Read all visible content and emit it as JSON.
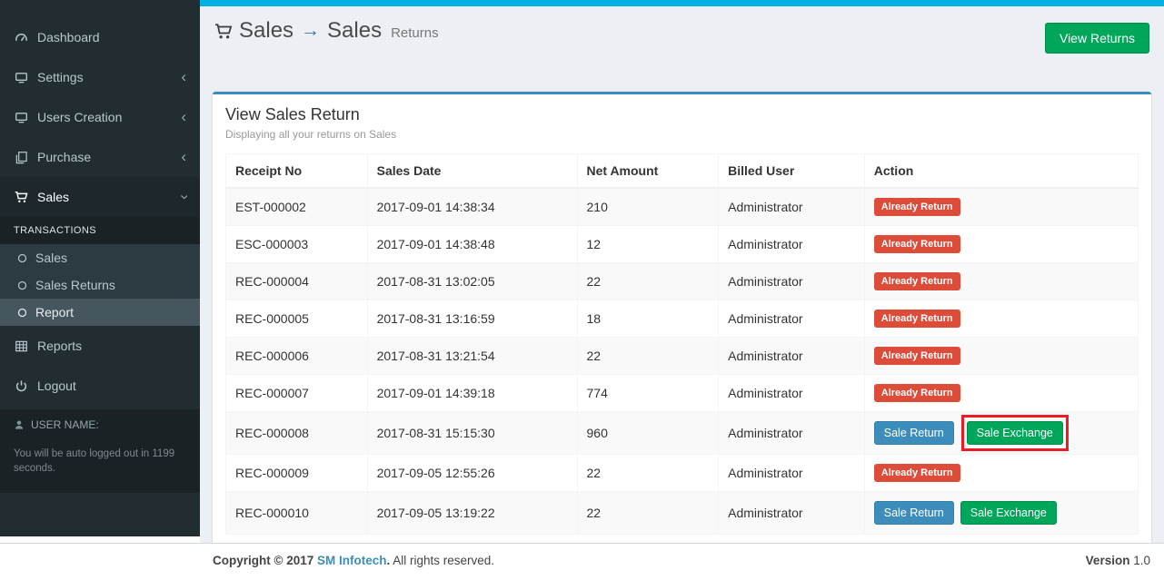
{
  "colors": {
    "top_strip": "#00b1e1",
    "sidebar_bg": "#222d32",
    "sidebar_active_bg": "#1e282c",
    "submenu_bg": "#2c3b41",
    "content_bg": "#ecf0f5",
    "box_top_border": "#3c8dbc",
    "success_green": "#00a65a",
    "danger_red": "#dd4b39",
    "primary_blue": "#3c8dbc",
    "annotation_red": "#ed1c24"
  },
  "sidebar": {
    "items": [
      {
        "label": "Dashboard",
        "icon": "dashboard-icon",
        "chevron": null,
        "active": false
      },
      {
        "label": "Settings",
        "icon": "monitor-icon",
        "chevron": "left",
        "active": false
      },
      {
        "label": "Users Creation",
        "icon": "monitor-icon",
        "chevron": "left",
        "active": false
      },
      {
        "label": "Purchase",
        "icon": "copy-icon",
        "chevron": "left",
        "active": false
      },
      {
        "label": "Sales",
        "icon": "cart-icon",
        "chevron": "down",
        "active": true
      }
    ],
    "section_header": "TRANSACTIONS",
    "submenu": [
      {
        "label": "Sales",
        "icon": "circle-icon",
        "highlighted": false
      },
      {
        "label": "Sales Returns",
        "icon": "circle-icon",
        "highlighted": false
      },
      {
        "label": "Report",
        "icon": "circle-icon",
        "highlighted": true
      }
    ],
    "lower_items": [
      {
        "label": "Reports",
        "icon": "table-icon"
      },
      {
        "label": "Logout",
        "icon": "power-icon"
      }
    ],
    "user_panel": {
      "label": "USER NAME:",
      "logout_note": "You will be auto logged out in 1199 seconds."
    }
  },
  "header": {
    "icon": "cart-icon",
    "title": "Sales",
    "arrow": "→",
    "title2": "Sales",
    "subtitle": "Returns",
    "action_button": "View Returns"
  },
  "panel": {
    "title": "View Sales Return",
    "subtitle": "Displaying all your returns on Sales"
  },
  "table": {
    "columns": [
      "Receipt No",
      "Sales Date",
      "Net Amount",
      "Billed User",
      "Action"
    ],
    "rows": [
      {
        "receipt": "EST-000002",
        "date": "2017-09-01 14:38:34",
        "amount": "210",
        "user": "Administrator",
        "actions": [
          {
            "label": "Already Return",
            "kind": "badge-danger",
            "name": "already-return-badge",
            "interactable": false
          }
        ]
      },
      {
        "receipt": "ESC-000003",
        "date": "2017-09-01 14:38:48",
        "amount": "12",
        "user": "Administrator",
        "actions": [
          {
            "label": "Already Return",
            "kind": "badge-danger",
            "name": "already-return-badge",
            "interactable": false
          }
        ]
      },
      {
        "receipt": "REC-000004",
        "date": "2017-08-31 13:02:05",
        "amount": "22",
        "user": "Administrator",
        "actions": [
          {
            "label": "Already Return",
            "kind": "badge-danger",
            "name": "already-return-badge",
            "interactable": false
          }
        ]
      },
      {
        "receipt": "REC-000005",
        "date": "2017-08-31 13:16:59",
        "amount": "18",
        "user": "Administrator",
        "actions": [
          {
            "label": "Already Return",
            "kind": "badge-danger",
            "name": "already-return-badge",
            "interactable": false
          }
        ]
      },
      {
        "receipt": "REC-000006",
        "date": "2017-08-31 13:21:54",
        "amount": "22",
        "user": "Administrator",
        "actions": [
          {
            "label": "Already Return",
            "kind": "badge-danger",
            "name": "already-return-badge",
            "interactable": false
          }
        ]
      },
      {
        "receipt": "REC-000007",
        "date": "2017-09-01 14:39:18",
        "amount": "774",
        "user": "Administrator",
        "actions": [
          {
            "label": "Already Return",
            "kind": "badge-danger",
            "name": "already-return-badge",
            "interactable": false
          }
        ]
      },
      {
        "receipt": "REC-000008",
        "date": "2017-08-31 15:15:30",
        "amount": "960",
        "user": "Administrator",
        "actions": [
          {
            "label": "Sale Return",
            "kind": "btn-primary",
            "name": "sale-return-button",
            "interactable": true
          },
          {
            "label": "Sale Exchange",
            "kind": "btn-success",
            "name": "sale-exchange-button",
            "interactable": true,
            "annotated": true
          }
        ]
      },
      {
        "receipt": "REC-000009",
        "date": "2017-09-05 12:55:26",
        "amount": "22",
        "user": "Administrator",
        "actions": [
          {
            "label": "Already Return",
            "kind": "badge-danger",
            "name": "already-return-badge",
            "interactable": false
          }
        ]
      },
      {
        "receipt": "REC-000010",
        "date": "2017-09-05 13:19:22",
        "amount": "22",
        "user": "Administrator",
        "actions": [
          {
            "label": "Sale Return",
            "kind": "btn-primary",
            "name": "sale-return-button",
            "interactable": true
          },
          {
            "label": "Sale Exchange",
            "kind": "btn-success",
            "name": "sale-exchange-button",
            "interactable": true
          }
        ]
      }
    ]
  },
  "footer": {
    "copyright_prefix": "Copyright © 2017",
    "company": "SM Infotech",
    "period": ".",
    "rights": " All rights reserved.",
    "version_label": "Version",
    "version_value": "1.0"
  }
}
